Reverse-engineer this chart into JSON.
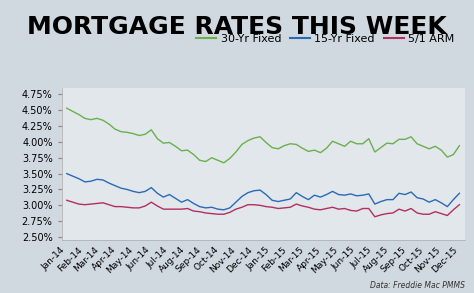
{
  "title": "MORTGAGE RATES THIS WEEK",
  "subtitle": "Data: Freddie Mac PMMS",
  "x_labels": [
    "Jan-14",
    "Feb-14",
    "Mar-14",
    "Apr-14",
    "May-14",
    "Jun-14",
    "Jul-14",
    "Aug-14",
    "Sep-14",
    "Oct-14",
    "Nov-14",
    "Dec-14",
    "Jan-15",
    "Feb-15",
    "Mar-15",
    "Apr-15",
    "May-15",
    "Jun-15",
    "Jul-15",
    "Aug-15",
    "Sep-15",
    "Oct-15",
    "Nov-15",
    "Dec-15"
  ],
  "yticks": [
    2.5,
    2.75,
    3.0,
    3.25,
    3.5,
    3.75,
    4.0,
    4.25,
    4.5,
    4.75
  ],
  "ylim": [
    2.45,
    4.85
  ],
  "series_30yr": [
    4.53,
    4.48,
    4.43,
    4.37,
    4.35,
    4.37,
    4.34,
    4.28,
    4.2,
    4.16,
    4.15,
    4.13,
    4.1,
    4.12,
    4.19,
    4.05,
    3.98,
    3.99,
    3.93,
    3.86,
    3.87,
    3.8,
    3.71,
    3.69,
    3.75,
    3.71,
    3.67,
    3.74,
    3.84,
    3.96,
    4.02,
    4.06,
    4.08,
    3.99,
    3.91,
    3.89,
    3.94,
    3.97,
    3.96,
    3.9,
    3.85,
    3.87,
    3.83,
    3.9,
    4.01,
    3.97,
    3.93,
    4.01,
    3.97,
    3.97,
    4.05,
    3.84,
    3.91,
    3.98,
    3.97,
    4.04,
    4.04,
    4.08,
    3.97,
    3.93,
    3.89,
    3.93,
    3.87,
    3.76,
    3.8,
    3.94
  ],
  "series_15yr": [
    3.5,
    3.46,
    3.42,
    3.37,
    3.38,
    3.41,
    3.4,
    3.35,
    3.31,
    3.27,
    3.25,
    3.22,
    3.2,
    3.22,
    3.28,
    3.19,
    3.13,
    3.17,
    3.11,
    3.05,
    3.09,
    3.03,
    2.98,
    2.96,
    2.97,
    2.94,
    2.93,
    2.96,
    3.05,
    3.14,
    3.2,
    3.23,
    3.24,
    3.17,
    3.08,
    3.06,
    3.08,
    3.1,
    3.2,
    3.14,
    3.09,
    3.16,
    3.13,
    3.17,
    3.22,
    3.17,
    3.16,
    3.18,
    3.15,
    3.16,
    3.18,
    3.02,
    3.06,
    3.09,
    3.09,
    3.19,
    3.17,
    3.21,
    3.12,
    3.1,
    3.05,
    3.09,
    3.04,
    2.98,
    3.09,
    3.19
  ],
  "series_arm": [
    3.08,
    3.05,
    3.02,
    3.01,
    3.02,
    3.03,
    3.04,
    3.01,
    2.98,
    2.98,
    2.97,
    2.96,
    2.96,
    2.99,
    3.05,
    2.99,
    2.94,
    2.94,
    2.94,
    2.94,
    2.95,
    2.91,
    2.9,
    2.88,
    2.87,
    2.86,
    2.86,
    2.89,
    2.94,
    2.97,
    3.01,
    3.01,
    3.0,
    2.98,
    2.97,
    2.95,
    2.96,
    2.97,
    3.02,
    2.99,
    2.97,
    2.94,
    2.93,
    2.95,
    2.97,
    2.94,
    2.95,
    2.92,
    2.91,
    2.95,
    2.95,
    2.82,
    2.85,
    2.87,
    2.88,
    2.94,
    2.91,
    2.95,
    2.88,
    2.86,
    2.86,
    2.9,
    2.87,
    2.84,
    2.93,
    3.01
  ],
  "color_30yr": "#6ab04c",
  "color_15yr": "#2a6ab5",
  "color_arm": "#b03060",
  "title_fontsize": 18,
  "legend_fontsize": 8,
  "tick_fontsize": 7,
  "bg_house_color": "#d0d8e0",
  "chart_bg": [
    1.0,
    1.0,
    1.0,
    0.45
  ]
}
